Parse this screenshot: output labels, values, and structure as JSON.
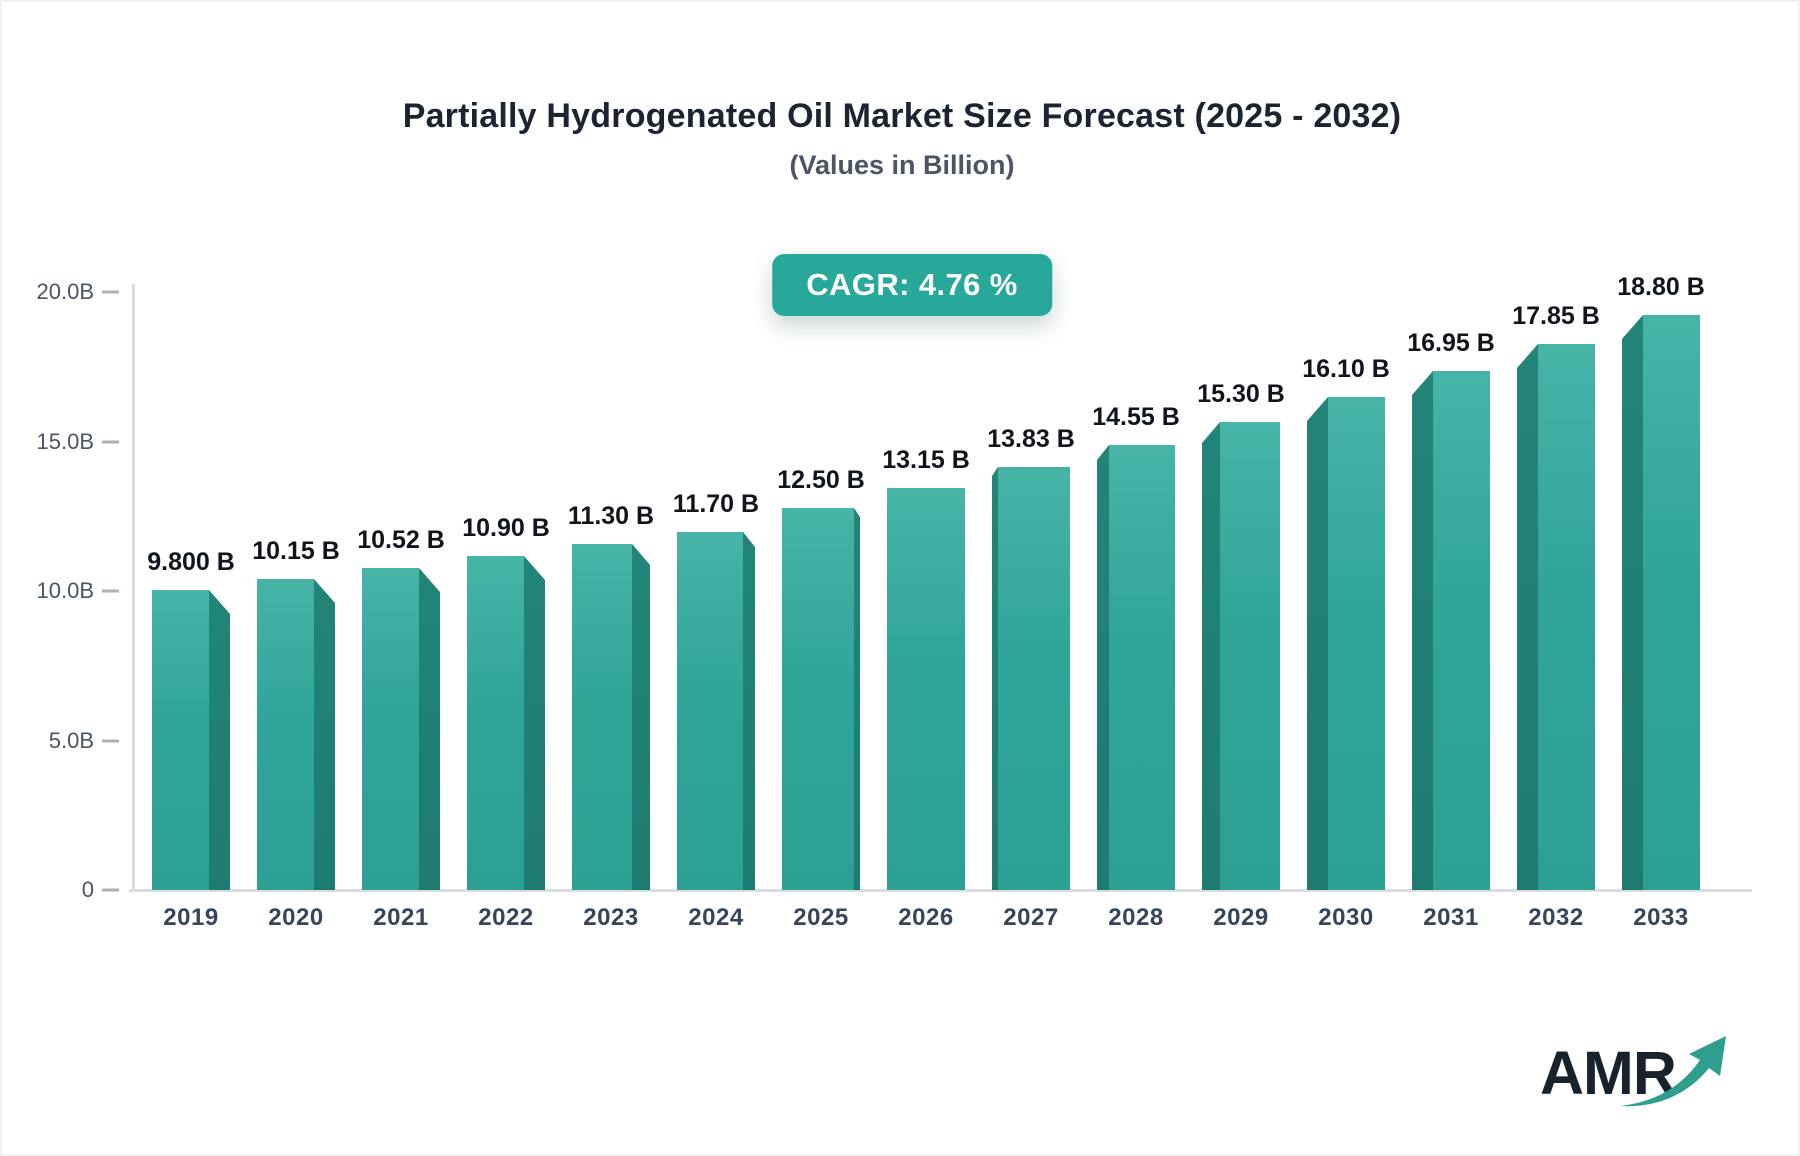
{
  "header": {
    "title": "Partially Hydrogenated Oil Market Size Forecast (2025 - 2032)",
    "subtitle": "(Values in Billion)",
    "badge_label": "CAGR: 4.76 %"
  },
  "logo": {
    "text": "AMR"
  },
  "colors": {
    "badge_bg": "#28a89b",
    "bar_face_top": "#47b4a6",
    "bar_face_bottom": "#2da094",
    "bar_side": "#1e7b70",
    "axis_line": "#d9dce2",
    "tick_label": "#4a5568",
    "category_label": "#37455a",
    "value_label": "#10151d",
    "logo_arrow": "#2f9e8f"
  },
  "chart_data": {
    "type": "bar",
    "title": "Partially Hydrogenated Oil Market Size Forecast (2025 - 2032)",
    "subtitle": "(Values in Billion)",
    "annotation": "CAGR: 4.76 %",
    "categories": [
      "2019",
      "2020",
      "2021",
      "2022",
      "2023",
      "2024",
      "2025",
      "2026",
      "2027",
      "2028",
      "2029",
      "2030",
      "2031",
      "2032",
      "2033"
    ],
    "values": [
      9.8,
      10.15,
      10.52,
      10.9,
      11.3,
      11.7,
      12.5,
      13.15,
      13.83,
      14.55,
      15.3,
      16.1,
      16.95,
      17.85,
      18.8
    ],
    "value_labels": [
      "9.800 B",
      "10.15 B",
      "10.52 B",
      "10.90 B",
      "11.30 B",
      "11.70 B",
      "12.50 B",
      "13.15 B",
      "13.83 B",
      "14.55 B",
      "15.30 B",
      "16.10 B",
      "16.95 B",
      "17.85 B",
      "18.80 B"
    ],
    "xlabel": "",
    "ylabel": "",
    "ylim": [
      0,
      20
    ],
    "yticks": [
      {
        "label": "20.0B",
        "value": 20
      },
      {
        "label": "15.0B",
        "value": 15
      },
      {
        "label": "10.0B",
        "value": 10
      },
      {
        "label": "5.0B",
        "value": 5
      },
      {
        "label": "0",
        "value": 0
      }
    ],
    "grid": false,
    "legend": "none",
    "style": "3d-columns, teal, perspective toward center column (2026)"
  }
}
